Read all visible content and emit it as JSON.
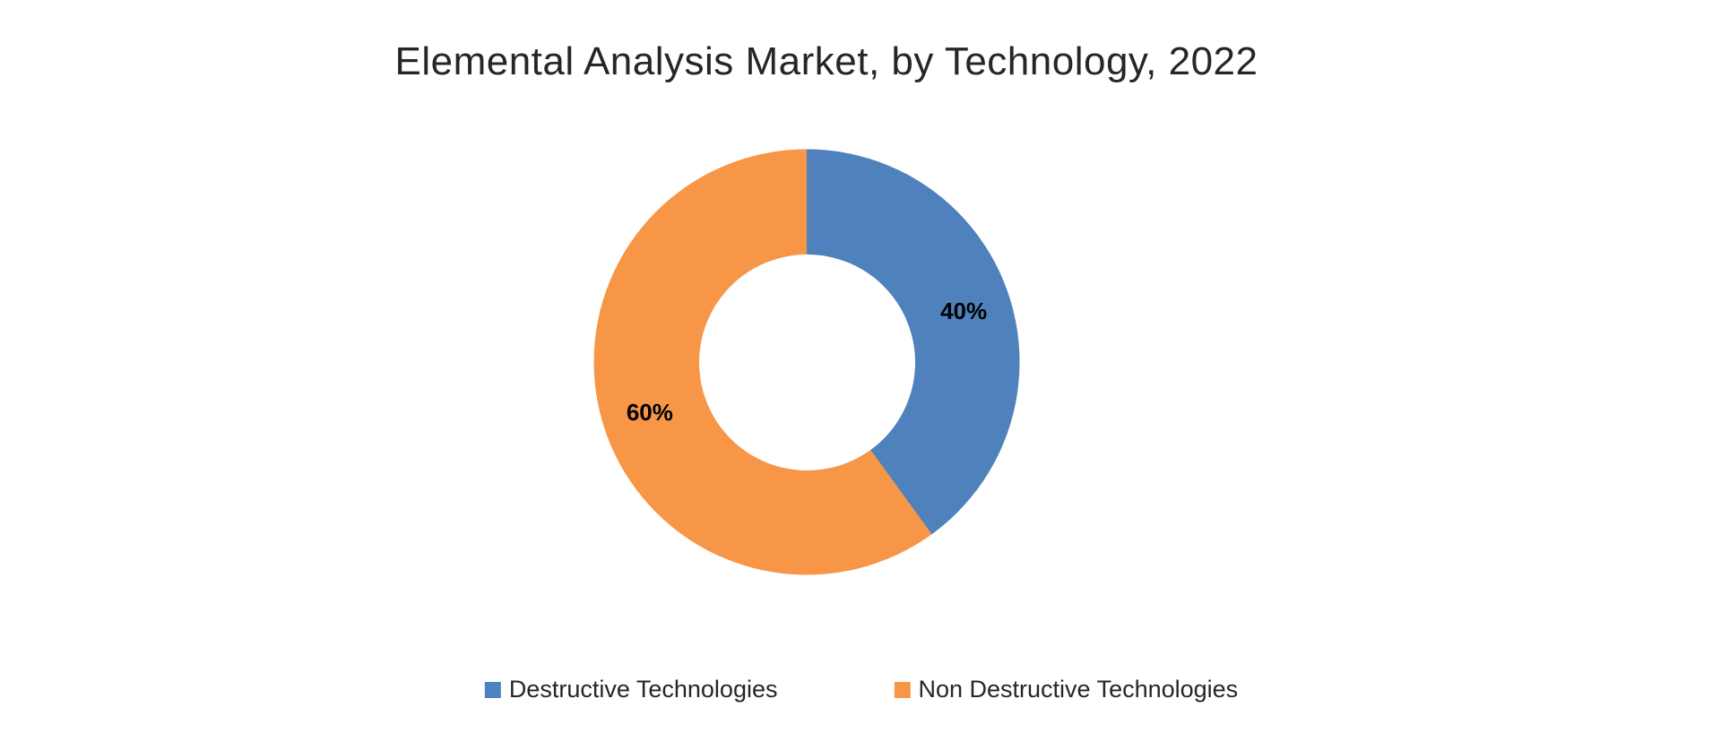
{
  "chart_data": {
    "type": "pie",
    "subtype": "donut",
    "title": "Elemental Analysis Market, by Technology, 2022",
    "start_angle_deg": 0,
    "inner_radius_ratio": 0.5,
    "legend_position": "bottom",
    "background_color": "#ffffff",
    "slices": [
      {
        "label": "Destructive Technologies",
        "value": 40,
        "data_label": "40%",
        "color": "#4F81BD"
      },
      {
        "label": "Non Destructive Technologies",
        "value": 60,
        "data_label": "60%",
        "color": "#F79646"
      }
    ]
  }
}
